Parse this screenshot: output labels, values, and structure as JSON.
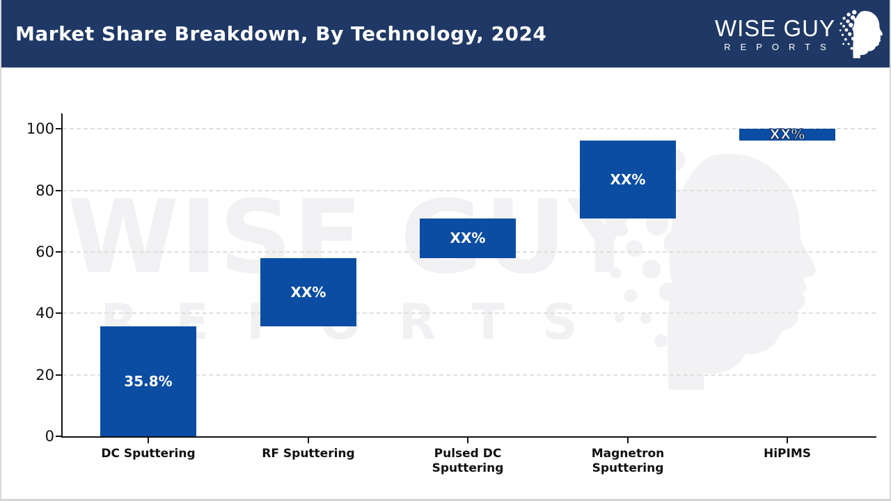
{
  "header": {
    "title": "Market Share Breakdown, By Technology, 2024",
    "logo": {
      "wordmark": "WISE GUY",
      "tagline": "REPORTS"
    }
  },
  "watermark": {
    "wordmark": "WISE GUY",
    "tagline": "REPORTS"
  },
  "colors": {
    "header_bg": "#1f3865",
    "bar": "#0b4da2",
    "grid": "#dedede",
    "axis": "#111111",
    "watermark": "#f1f1f3",
    "title_text": "#ffffff",
    "bar_label": "#ffffff"
  },
  "chart_data": {
    "type": "bar",
    "subtype": "waterfall",
    "title": "Market Share Breakdown, By Technology, 2024",
    "categories": [
      "DC Sputtering",
      "RF Sputtering",
      "Pulsed DC Sputtering",
      "Magnetron Sputtering",
      "HiPIMS"
    ],
    "bars": [
      {
        "category_lines": [
          "DC Sputtering"
        ],
        "start": 0,
        "end": 35.8,
        "label": "35.8%"
      },
      {
        "category_lines": [
          "RF Sputtering"
        ],
        "start": 35.8,
        "end": 58.0,
        "label": "XX%"
      },
      {
        "category_lines": [
          "Pulsed DC",
          "Sputtering"
        ],
        "start": 58.0,
        "end": 70.9,
        "label": "XX%"
      },
      {
        "category_lines": [
          "Magnetron",
          "Sputtering"
        ],
        "start": 70.9,
        "end": 96.3,
        "label": "XX%"
      },
      {
        "category_lines": [
          "HiPIMS"
        ],
        "start": 96.3,
        "end": 100.0,
        "label": "XX%",
        "label_outlined": true
      }
    ],
    "xlabel": "",
    "ylabel": "",
    "ylim": [
      0,
      100
    ],
    "yticks": [
      0,
      20,
      40,
      60,
      80,
      100
    ],
    "grid": "dashed-horizontal",
    "legend": false,
    "bar_color": "#0b4da2",
    "value_label_color": "#ffffff"
  }
}
